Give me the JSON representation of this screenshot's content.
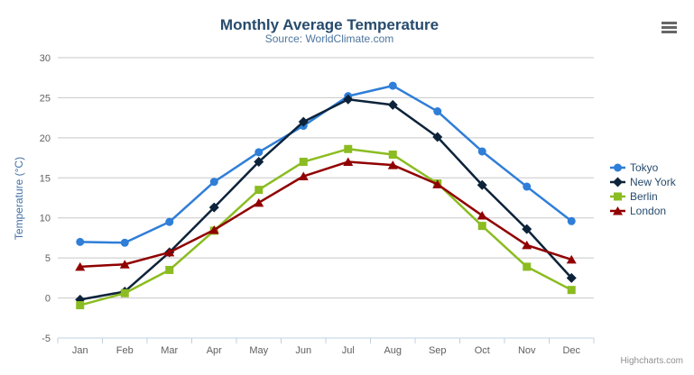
{
  "chart": {
    "credits": "Highcharts.com",
    "context_menu_icon": "hamburger-icon"
  },
  "chart_data": {
    "type": "line",
    "title": "Monthly Average Temperature",
    "subtitle": "Source: WorldClimate.com",
    "categories": [
      "Jan",
      "Feb",
      "Mar",
      "Apr",
      "May",
      "Jun",
      "Jul",
      "Aug",
      "Sep",
      "Oct",
      "Nov",
      "Dec"
    ],
    "series": [
      {
        "name": "Tokyo",
        "color": "#2f7ed8",
        "marker": "circle",
        "values": [
          7.0,
          6.9,
          9.5,
          14.5,
          18.2,
          21.5,
          25.2,
          26.5,
          23.3,
          18.3,
          13.9,
          9.6
        ]
      },
      {
        "name": "New York",
        "color": "#0d233a",
        "marker": "diamond",
        "values": [
          -0.2,
          0.8,
          5.7,
          11.3,
          17.0,
          22.0,
          24.8,
          24.1,
          20.1,
          14.1,
          8.6,
          2.5
        ]
      },
      {
        "name": "Berlin",
        "color": "#8bbc21",
        "marker": "square",
        "values": [
          -0.9,
          0.6,
          3.5,
          8.4,
          13.5,
          17.0,
          18.6,
          17.9,
          14.3,
          9.0,
          3.9,
          1.0
        ]
      },
      {
        "name": "London",
        "color": "#910000",
        "marker": "triangle",
        "values": [
          3.9,
          4.2,
          5.7,
          8.5,
          11.9,
          15.2,
          17.0,
          16.6,
          14.2,
          10.3,
          6.6,
          4.8
        ]
      }
    ],
    "xlabel": "",
    "ylabel": "Temperature (°C)",
    "ylim": [
      -5,
      30
    ],
    "yticks": [
      "-5",
      "0",
      "5",
      "10",
      "15",
      "20",
      "25",
      "30"
    ],
    "grid": true,
    "legend_position": "right"
  },
  "colors": {
    "grid": "#c8c8c8",
    "axis_line": "#c0d0e0",
    "tick": "#c0d0e0",
    "tick_label": "#606060",
    "title": "#274b6d",
    "subtitle": "#4d759e",
    "axis_title": "#4572A7",
    "legend_text": "#274b6d",
    "credits": "#909090",
    "menu_icon": "#666666",
    "background": "#ffffff"
  }
}
